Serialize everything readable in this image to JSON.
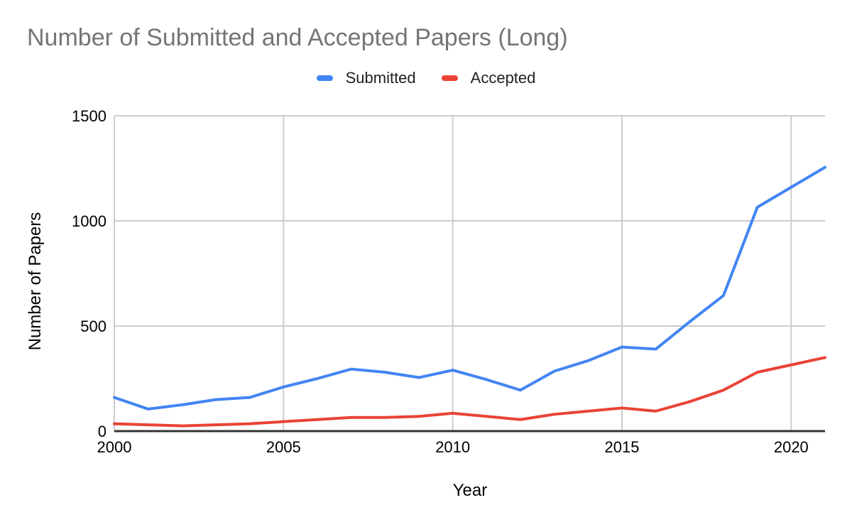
{
  "page": {
    "background": "#ffffff"
  },
  "chart_data": {
    "type": "line",
    "title": "Number of Submitted and Accepted Papers (Long)",
    "title_color": "#757575",
    "xlabel": "Year",
    "ylabel": "Number of Papers",
    "x": [
      2000,
      2001,
      2002,
      2003,
      2004,
      2005,
      2006,
      2007,
      2008,
      2009,
      2010,
      2011,
      2012,
      2013,
      2014,
      2015,
      2016,
      2017,
      2018,
      2019,
      2020,
      2021
    ],
    "series": [
      {
        "name": "Submitted",
        "color": "#4285F4",
        "values": [
          160,
          105,
          125,
          150,
          160,
          210,
          250,
          295,
          280,
          255,
          290,
          245,
          195,
          285,
          335,
          400,
          390,
          520,
          645,
          1065,
          1160,
          1255
        ]
      },
      {
        "name": "Accepted",
        "color": "#EA4335",
        "values": [
          35,
          30,
          25,
          30,
          35,
          45,
          55,
          65,
          65,
          70,
          85,
          70,
          55,
          80,
          95,
          110,
          95,
          140,
          195,
          280,
          315,
          350
        ]
      }
    ],
    "ylim": [
      0,
      1500
    ],
    "yticks": [
      0,
      500,
      1000,
      1500
    ],
    "xticks": [
      2000,
      2005,
      2010,
      2015,
      2020
    ],
    "grid": true,
    "legend_position": "top",
    "gridline_color": "#cccccc",
    "axis_line_color": "#333333",
    "tick_label_color": "#000000"
  }
}
